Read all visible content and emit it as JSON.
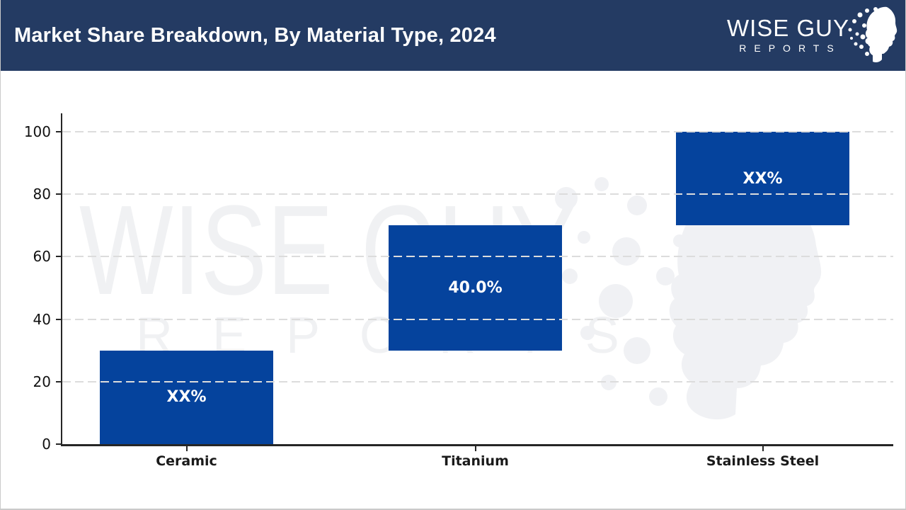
{
  "header": {
    "title": "Market Share Breakdown, By Material Type, 2024",
    "logo": {
      "name": "WISE GUY",
      "tagline": "REPORTS"
    }
  },
  "watermark": {
    "line1": "WISE GUY",
    "line2": "REPORTS"
  },
  "chart_data": {
    "type": "bar",
    "subtype": "floating-waterfall",
    "title": "Market Share Breakdown, By Material Type, 2024",
    "categories": [
      "Ceramic",
      "Titanium",
      "Stainless Steel"
    ],
    "bars": [
      {
        "category": "Ceramic",
        "start": 0,
        "end": 30,
        "label": "XX%"
      },
      {
        "category": "Titanium",
        "start": 30,
        "end": 70,
        "label": "40.0%"
      },
      {
        "category": "Stainless Steel",
        "start": 70,
        "end": 100,
        "label": "XX%"
      }
    ],
    "ylim": [
      0,
      100
    ],
    "yticks": [
      0,
      20,
      40,
      60,
      80,
      100
    ],
    "grid": "horizontal-dashed",
    "legend": false,
    "bar_color": "#05439d"
  },
  "colors": {
    "header_bg": "#243b63",
    "bar": "#05439d",
    "grid": "#dcdcdc",
    "axis": "#262626",
    "watermark": "#f0f1f3",
    "border": "#cacaca"
  }
}
